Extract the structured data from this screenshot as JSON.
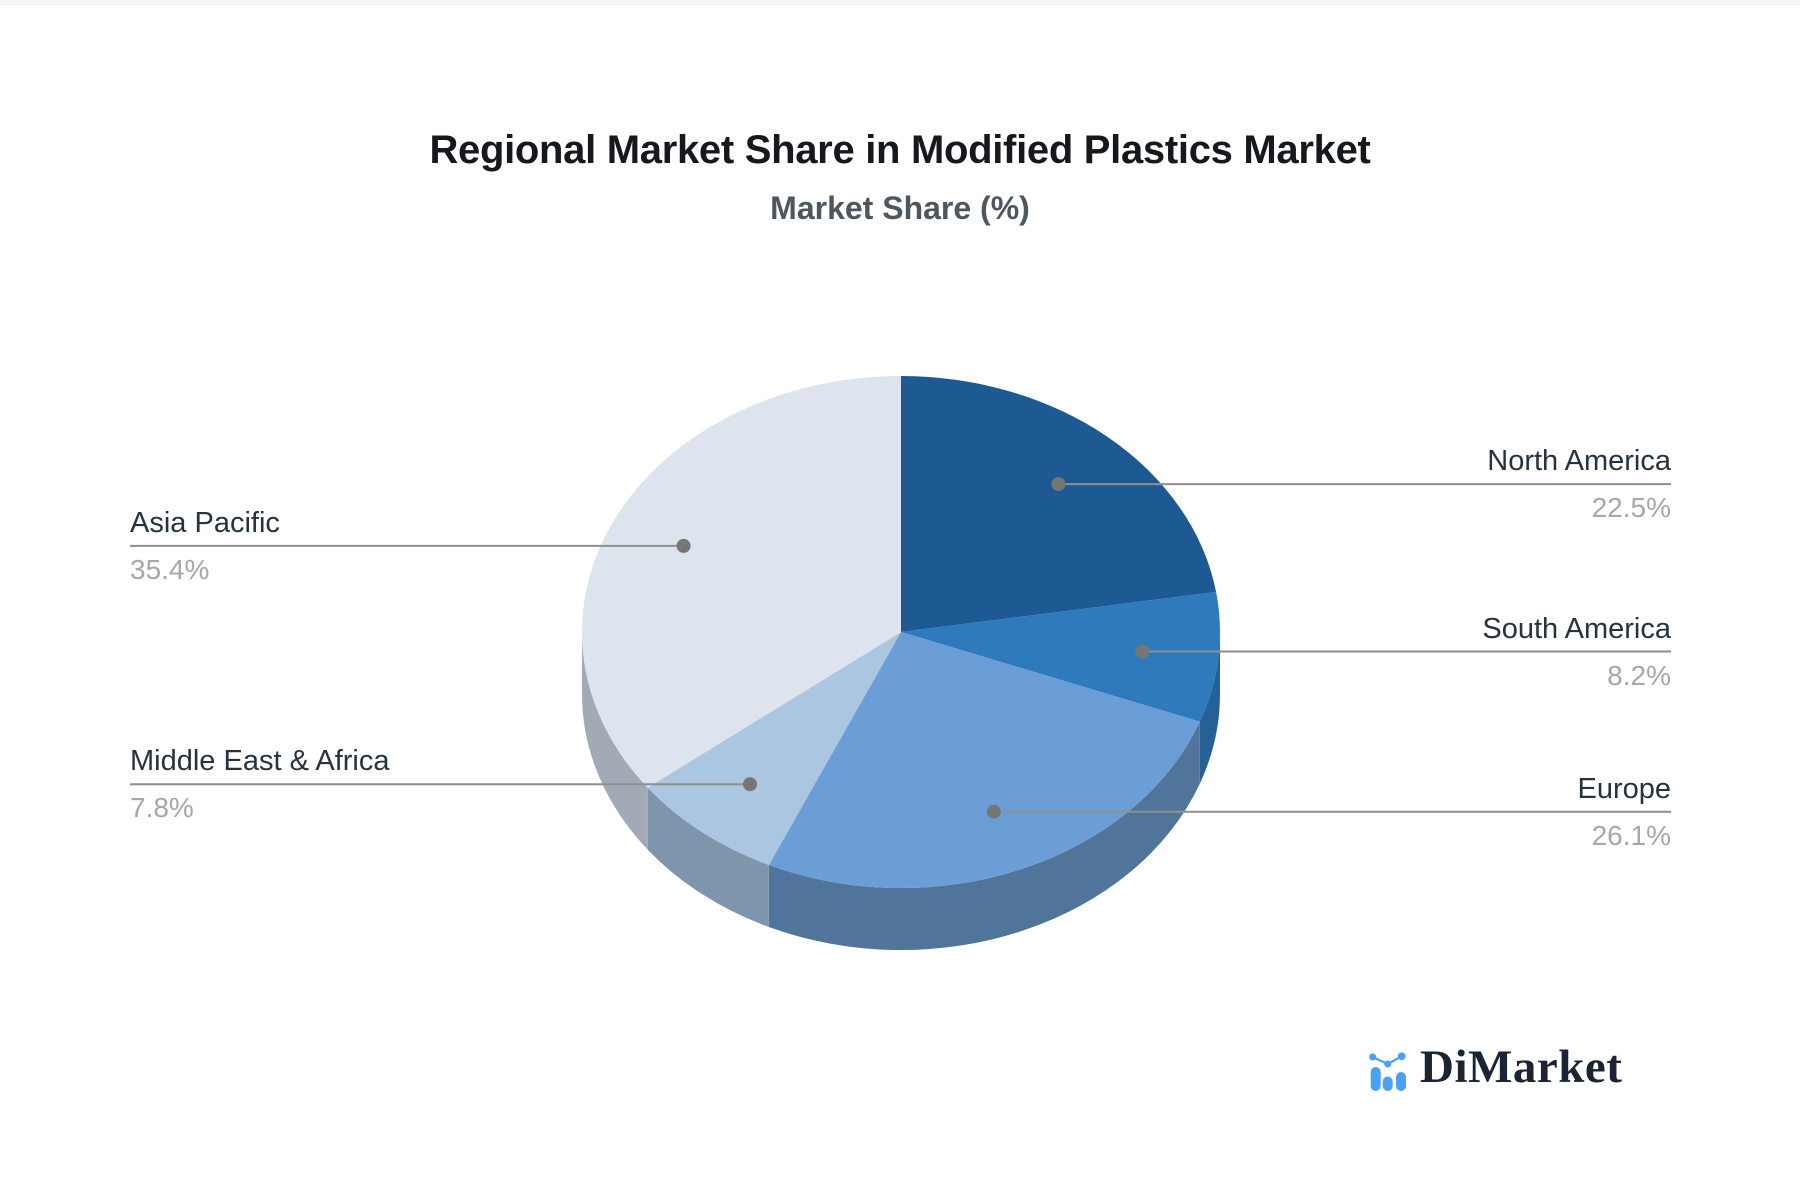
{
  "chart_data": {
    "type": "pie",
    "style": "3d",
    "title": "Regional Market Share in Modified Plastics Market",
    "subtitle": "Market Share (%)",
    "unit": "%",
    "start_angle_deg": 0,
    "direction": "clockwise",
    "legend": "none",
    "slices": [
      {
        "label": "North America",
        "value": 22.5,
        "pct": "22.5%",
        "color": "#1d5a93",
        "side_color": "#174a7c"
      },
      {
        "label": "South America",
        "value": 8.2,
        "pct": "8.2%",
        "color": "#2e7abc",
        "side_color": "#256196"
      },
      {
        "label": "Europe",
        "value": 26.1,
        "pct": "26.1%",
        "color": "#6b9ed6",
        "side_color": "#51759a"
      },
      {
        "label": "Middle East & Africa",
        "value": 7.8,
        "pct": "7.8%",
        "color": "#aac6e1",
        "side_color": "#7e95ab"
      },
      {
        "label": "Asia Pacific",
        "value": 35.4,
        "pct": "35.4%",
        "color": "#dde4ee",
        "side_color": "#a1aab5"
      }
    ],
    "callout": {
      "line_color": "#8f8f8f",
      "dot_color": "#767676",
      "label_color": "#253341",
      "pct_color": "#a7a7a7"
    }
  },
  "logo": {
    "text": "DiMarket",
    "icon": "bar-line-chart-icon",
    "icon_color": "#4aa0f2",
    "text_color": "#1a2433"
  },
  "page": {
    "background": "#ffffff",
    "top_strip_color": "#f5f6f8"
  }
}
